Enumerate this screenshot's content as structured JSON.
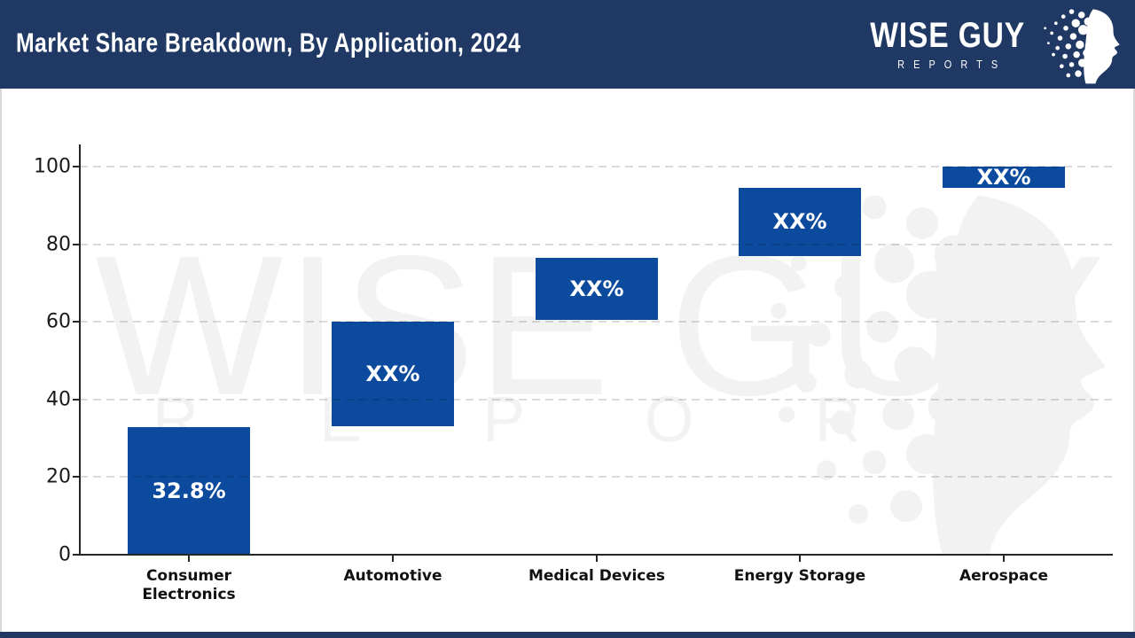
{
  "header": {
    "title": "Market Share Breakdown, By Application, 2024",
    "logo": {
      "line1": "WISE GUY",
      "line2": "REPORTS"
    }
  },
  "watermark": {
    "line1": "WISE GUY",
    "line2": "R E P O R T S",
    "face_icon": "dotted-head-profile"
  },
  "colors": {
    "navy": "#1F3864",
    "bar": "#0C4A9E",
    "axis": "#262626",
    "grid": "rgba(0,0,0,0.14)",
    "watermark": "#F2F2F2",
    "bar_label": "#FFFFFF"
  },
  "chart_data": {
    "type": "bar",
    "subtype": "waterfall (floating segment bars)",
    "title": "Market Share Breakdown, By Application, 2024",
    "xlabel": "",
    "ylabel": "",
    "categories": [
      "Consumer Electronics",
      "Automotive",
      "Medical Devices",
      "Energy Storage",
      "Aerospace"
    ],
    "segments": [
      {
        "category": "Consumer Electronics",
        "start": 0,
        "end": 32.8,
        "label": "32.8%"
      },
      {
        "category": "Automotive",
        "start": 33,
        "end": 60,
        "label": "XX%"
      },
      {
        "category": "Medical Devices",
        "start": 60.5,
        "end": 76.5,
        "label": "XX%"
      },
      {
        "category": "Energy Storage",
        "start": 77,
        "end": 94.5,
        "label": "XX%"
      },
      {
        "category": "Aerospace",
        "start": 94.5,
        "end": 100,
        "label": "XX%"
      }
    ],
    "values_display": [
      "32.8%",
      "XX%",
      "XX%",
      "XX%",
      "XX%"
    ],
    "yticks": [
      0,
      20,
      40,
      60,
      80,
      100
    ],
    "ylim": [
      0,
      105.7
    ],
    "grid": "dashed horizontal gridlines at y ticks, drawn over bars",
    "legend": "none",
    "notes": "Only the first segment value is revealed (32.8%); remaining values are masked as XX%. Each bar starts where the previous ends, cumulating to 100."
  }
}
